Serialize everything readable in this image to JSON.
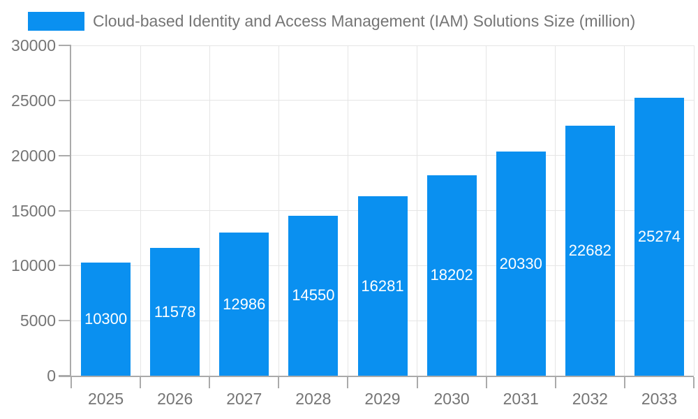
{
  "chart_data": {
    "type": "bar",
    "title": "Cloud-based Identity and Access Management (IAM) Solutions Size (million)",
    "legend": {
      "position": "top-left",
      "label": "Cloud-based Identity and Access Management (IAM) Solutions Size (million)"
    },
    "categories": [
      "2025",
      "2026",
      "2027",
      "2028",
      "2029",
      "2030",
      "2031",
      "2032",
      "2033"
    ],
    "series": [
      {
        "name": "Cloud-based Identity and Access Management (IAM) Solutions Size (million)",
        "values": [
          10300,
          11578,
          12986,
          14550,
          16281,
          18202,
          20330,
          22682,
          25274
        ]
      }
    ],
    "xlabel": "",
    "ylabel": "",
    "ylim": [
      0,
      30000
    ],
    "yticks": [
      0,
      5000,
      10000,
      15000,
      20000,
      25000,
      30000
    ],
    "grid": true,
    "bar_labels_shown": true,
    "colors": {
      "bar": "#0a90f0",
      "bar_label": "#ffffff",
      "grid": "#e5e5e5",
      "axis": "#aaaaaa",
      "text": "#757575",
      "background": "#ffffff"
    }
  }
}
